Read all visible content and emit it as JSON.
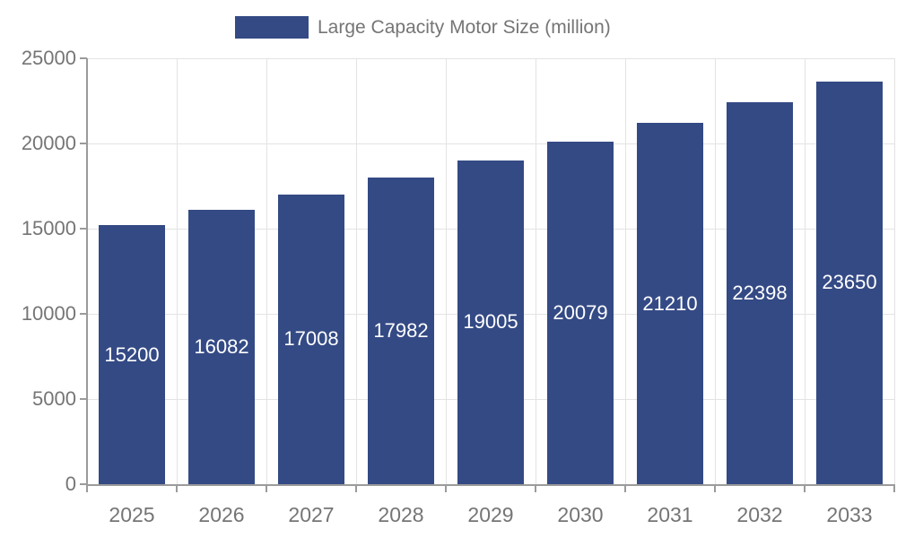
{
  "legend": {
    "label": "Large Capacity Motor Size (million)"
  },
  "colors": {
    "bar": "#344a85",
    "grid": "#e3e3e3",
    "axis": "#9b9b9b",
    "axis_label": "#757575",
    "value_label": "#ffffff",
    "legend_text": "#757575",
    "background": "#ffffff"
  },
  "chart_data": {
    "type": "bar",
    "title": "",
    "xlabel": "",
    "ylabel": "",
    "categories": [
      "2025",
      "2026",
      "2027",
      "2028",
      "2029",
      "2030",
      "2031",
      "2032",
      "2033"
    ],
    "series": [
      {
        "name": "Large Capacity Motor Size (million)",
        "values": [
          15200,
          16082,
          17008,
          17982,
          19005,
          20079,
          21210,
          22398,
          23650
        ]
      }
    ],
    "ylim": [
      0,
      25000
    ],
    "yticks": [
      0,
      5000,
      10000,
      15000,
      20000,
      25000
    ],
    "grid": true,
    "legend_position": "top-center",
    "value_labels": "inside-middle"
  }
}
